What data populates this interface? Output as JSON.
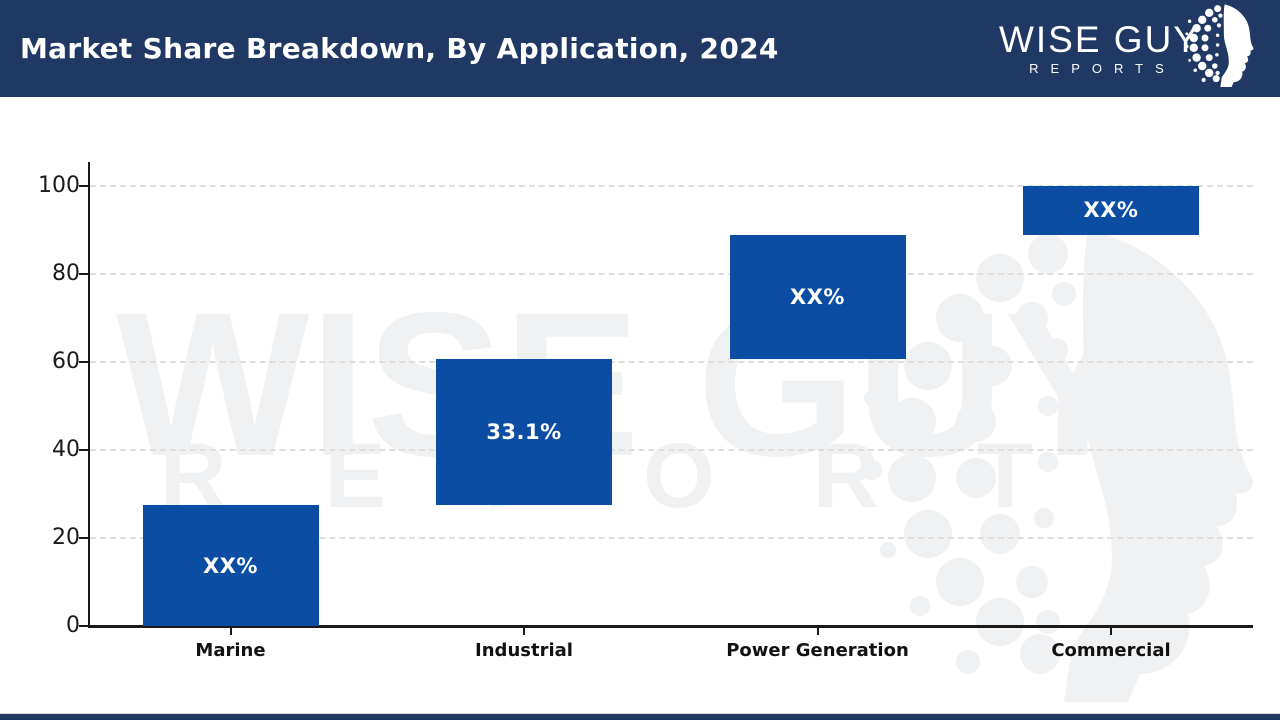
{
  "header": {
    "title": "Market Share Breakdown, By Application, 2024",
    "logo": {
      "line1": "WISE GUY",
      "line2": "REPORTS"
    }
  },
  "watermark": {
    "line1": "WISE GUY",
    "line2": "REPORTS"
  },
  "chart_data": {
    "type": "bar",
    "variant": "waterfall-floating-bars",
    "title": "Market Share Breakdown, By Application, 2024",
    "categories": [
      "Marine",
      "Industrial",
      "Power Generation",
      "Commercial"
    ],
    "segments": [
      {
        "category": "Marine",
        "start": 0,
        "end": 27.5,
        "label": "XX%"
      },
      {
        "category": "Industrial",
        "start": 27.5,
        "end": 60.6,
        "label": "33.1%"
      },
      {
        "category": "Power Generation",
        "start": 60.6,
        "end": 88.9,
        "label": "XX%"
      },
      {
        "category": "Commercial",
        "start": 88.9,
        "end": 100,
        "label": "XX%"
      }
    ],
    "xlabel": "",
    "ylabel": "",
    "yticks": [
      0,
      20,
      40,
      60,
      80,
      100
    ],
    "ylim": [
      0,
      105.5
    ],
    "grid": "horizontal-dashed",
    "legend": "none",
    "bar_color": "#0b4da2",
    "bar_label_color": "#ffffff"
  },
  "colors": {
    "header_bg": "#1f3864",
    "footer_bg": "#1f3864",
    "bar": "#0b4da2",
    "axis": "#1a1a1a",
    "gridline": "#dedede",
    "watermark": "#f0f1f3",
    "title_text": "#ffffff"
  }
}
